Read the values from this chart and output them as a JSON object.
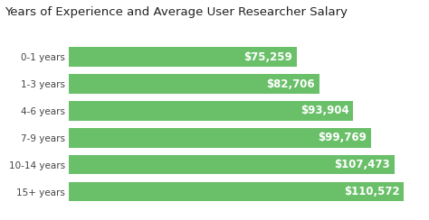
{
  "title": "Years of Experience and Average User Researcher Salary",
  "categories": [
    "0-1 years",
    "1-3 years",
    "4-6 years",
    "7-9 years",
    "10-14 years",
    "15+ years"
  ],
  "values": [
    75259,
    82706,
    93904,
    99769,
    107473,
    110572
  ],
  "labels": [
    "$75,259",
    "$82,706",
    "$93,904",
    "$99,769",
    "$107,473",
    "$110,572"
  ],
  "bar_color": "#6abf69",
  "background_color": "#ffffff",
  "title_fontsize": 9.5,
  "label_fontsize": 8.5,
  "tick_fontsize": 7.5,
  "xlim": [
    0,
    116000
  ],
  "bar_height": 0.72
}
